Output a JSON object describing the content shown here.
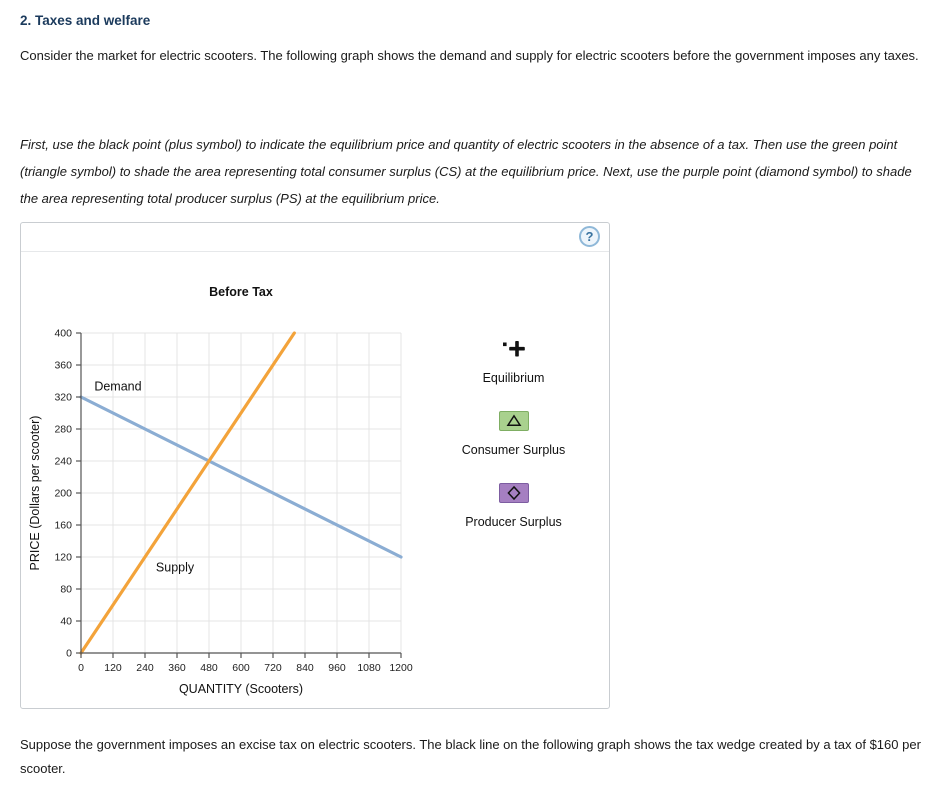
{
  "page": {
    "heading": "2. Taxes and welfare",
    "intro": "Consider the market for electric scooters. The following graph shows the demand and supply for electric scooters before the government imposes any taxes.",
    "instructions": "First, use the black point (plus symbol) to indicate the equilibrium price and quantity of electric scooters in the absence of a tax. Then use the green point (triangle symbol) to shade the area representing total consumer surplus (CS) at the equilibrium price. Next, use the purple point (diamond symbol) to shade the area representing total producer surplus (PS) at the equilibrium price.",
    "footer": "Suppose the government imposes an excise tax on electric scooters. The black line on the following graph shows the tax wedge created by a tax of $160 per scooter."
  },
  "panel": {
    "help_label": "?"
  },
  "chart_data": {
    "type": "line",
    "title": "Before Tax",
    "xlabel": "QUANTITY (Scooters)",
    "ylabel": "PRICE (Dollars per scooter)",
    "xlim": [
      0,
      1200
    ],
    "ylim": [
      0,
      400
    ],
    "x_tick_step": 120,
    "y_tick_step": 40,
    "grid": true,
    "series": [
      {
        "name": "Demand",
        "color": "#8badd3",
        "points": [
          [
            0,
            320
          ],
          [
            1200,
            120
          ]
        ],
        "label_pos": [
          50,
          328
        ]
      },
      {
        "name": "Supply",
        "color": "#f3a33a",
        "points": [
          [
            0,
            0
          ],
          [
            800,
            400
          ]
        ],
        "label_pos": [
          281,
          102
        ]
      }
    ]
  },
  "legend": {
    "items": [
      {
        "name": "Equilibrium",
        "tool": "plus-point",
        "color": "#111111"
      },
      {
        "name": "Consumer Surplus",
        "tool": "triangle-point",
        "color": "#a9d18e"
      },
      {
        "name": "Producer Surplus",
        "tool": "diamond-point",
        "color": "#a57fc1"
      }
    ]
  }
}
